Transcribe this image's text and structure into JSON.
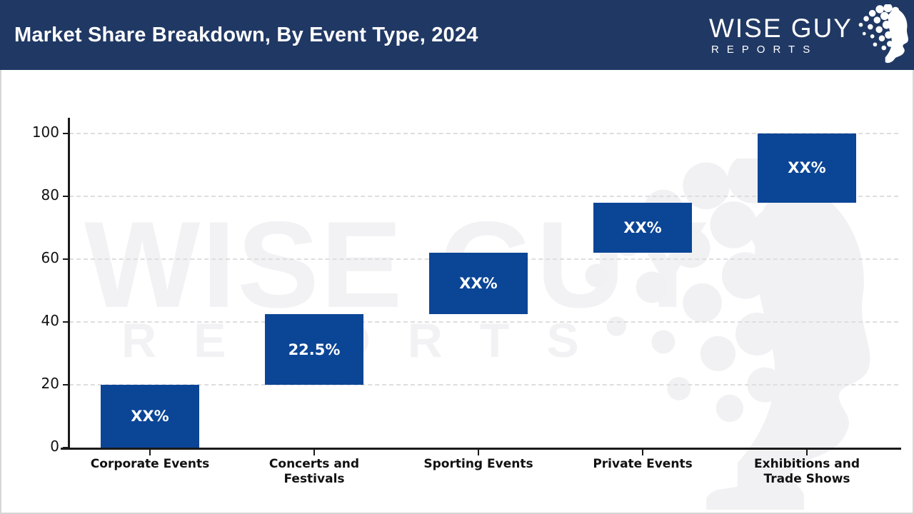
{
  "header": {
    "title": "Market Share Breakdown, By Event Type, 2024",
    "background": "#203864",
    "logo": {
      "line1": "WISE GUY",
      "line2": "REPORTS"
    }
  },
  "watermark": {
    "line1": "WISE GUY",
    "line2": "REPORTS"
  },
  "colors": {
    "header_bg": "#203864",
    "bar": "#0b4596",
    "grid": "#dedede",
    "axis": "#1a1a1a",
    "watermark": "#f2f2f4",
    "value_label": "#ffffff"
  },
  "chart_data": {
    "type": "bar",
    "subtype": "waterfall",
    "title": "Market Share Breakdown, By Event Type, 2024",
    "categories": [
      [
        "Corporate Events"
      ],
      [
        "Concerts and",
        "Festivals"
      ],
      [
        "Sporting Events"
      ],
      [
        "Private Events"
      ],
      [
        "Exhibitions and",
        "Trade Shows"
      ]
    ],
    "segments": [
      {
        "start": 0,
        "end": 20,
        "label": "XX%"
      },
      {
        "start": 20,
        "end": 42.5,
        "label": "22.5%"
      },
      {
        "start": 42.5,
        "end": 62,
        "label": "XX%"
      },
      {
        "start": 62,
        "end": 78,
        "label": "XX%"
      },
      {
        "start": 78,
        "end": 100,
        "label": "XX%"
      }
    ],
    "yticks": [
      0,
      20,
      40,
      60,
      80,
      100
    ],
    "ylim": [
      0,
      100
    ],
    "grid": "horizontal-dashed",
    "legend": "none",
    "bar_color": "#0b4596",
    "value_label_color": "#ffffff"
  }
}
